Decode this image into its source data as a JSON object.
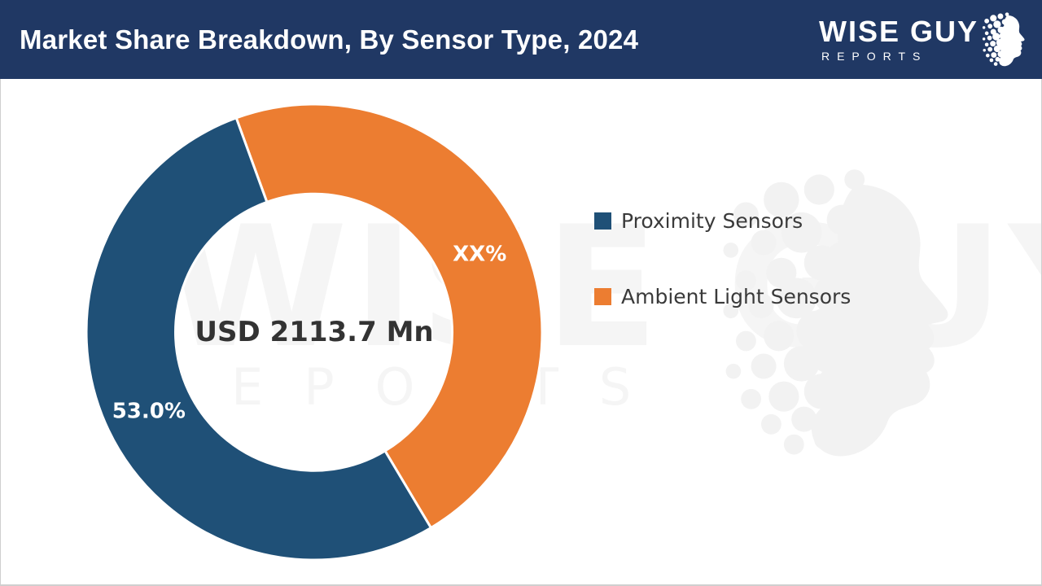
{
  "header": {
    "title": "Market Share Breakdown, By Sensor Type, 2024",
    "bg_color": "#203864",
    "logo": {
      "wordmark": "WISE GUY",
      "subtitle": "REPORTS"
    }
  },
  "watermark": {
    "wordmark": "WISE GUY",
    "subtitle": "REPORTS"
  },
  "chart_data": {
    "type": "pie",
    "subtype": "donut",
    "title": "Market Share Breakdown, By Sensor Type, 2024",
    "center_label": "USD 2113.7 Mn",
    "segments": [
      {
        "label": "Proximity Sensors",
        "value_pct": 53.0,
        "display_label": "53.0%",
        "color": "#1F5077"
      },
      {
        "label": "Ambient Light Sensors",
        "value_pct": 47.0,
        "display_label": "XX%",
        "color": "#EC7D31"
      }
    ],
    "clockwise_draw_order": [
      1,
      0
    ],
    "start_angle_deg": -20,
    "donut_hole_ratio": 0.607,
    "separator_color": "#ffffff",
    "legend_position": "right"
  },
  "colors": {
    "header_bg": "#203864",
    "blue_segment": "#1F5077",
    "orange_segment": "#EC7D31",
    "legend_text": "#3a3a3a",
    "center_text": "#333333",
    "watermark": "#f3f3f3",
    "frame_border": "#cfcfcf"
  }
}
